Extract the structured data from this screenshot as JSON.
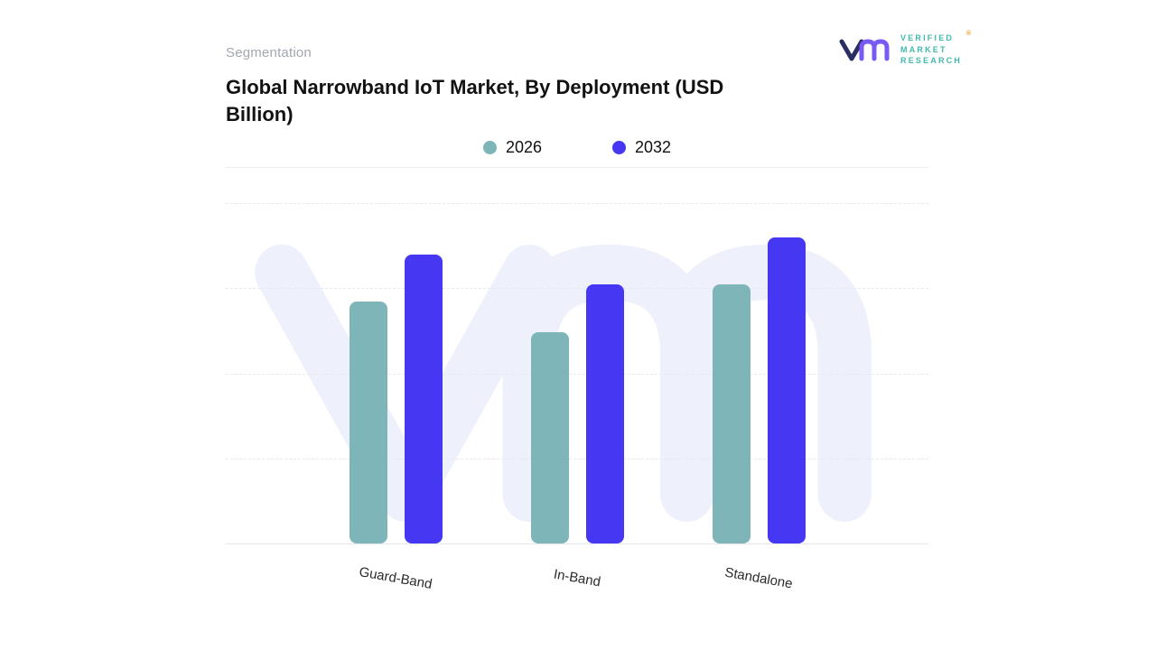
{
  "header": {
    "eyebrow": "Segmentation",
    "title": "Global Narrowband IoT Market, By Deployment (USD Billion)"
  },
  "logo": {
    "lines": [
      "VERIFIED",
      "MARKET",
      "RESEARCH"
    ],
    "registered": "®"
  },
  "colors": {
    "series_2026": "#7db5b9",
    "series_2032": "#4637f2",
    "watermark": "#eef0fb",
    "gridline": "#e7e9ee",
    "baseline": "#e3e6ea",
    "title_text": "#121212",
    "eyebrow_text": "#a2a7b0",
    "logo_navy": "#2b2e63",
    "logo_purple": "#7a5af5",
    "logo_teal": "#41b9ae",
    "logo_orange": "#f59a23"
  },
  "chart_data": {
    "type": "bar",
    "title": "Global Narrowband IoT Market, By Deployment (USD Billion)",
    "categories": [
      "Guard-Band",
      "In-Band",
      "Standalone"
    ],
    "series": [
      {
        "name": "2026",
        "color": "#7db5b9",
        "values": [
          71,
          62,
          76
        ]
      },
      {
        "name": "2032",
        "color": "#4637f2",
        "values": [
          85,
          76,
          90
        ]
      }
    ],
    "xlabel": "",
    "ylabel": "",
    "ylim": [
      0,
      100
    ],
    "y_axis_visible": false,
    "grid": "horizontal-dashed",
    "legend_position": "top-center",
    "value_unit": "USD Billion"
  }
}
